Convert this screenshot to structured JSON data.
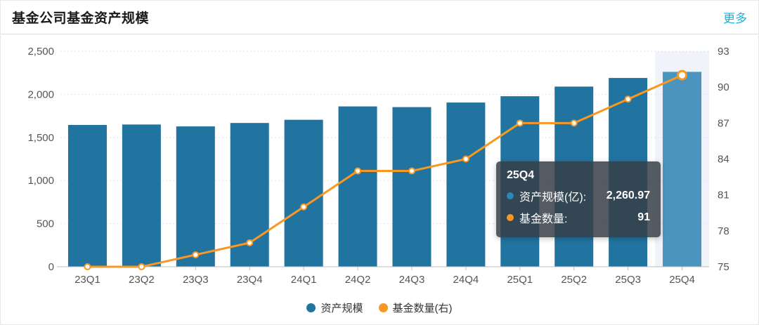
{
  "header": {
    "title": "基金公司基金资产规模",
    "more": "更多"
  },
  "chart_data": {
    "type": "bar+line",
    "categories": [
      "23Q1",
      "23Q2",
      "23Q3",
      "23Q4",
      "24Q1",
      "24Q2",
      "24Q3",
      "24Q4",
      "25Q1",
      "25Q2",
      "25Q3",
      "25Q4"
    ],
    "series": [
      {
        "name": "资产规模",
        "type": "bar",
        "axis": "left",
        "color": "#2274A0",
        "highlight_color": "#4A94BE",
        "values": [
          1645,
          1650,
          1628,
          1668,
          1705,
          1860,
          1852,
          1905,
          1978,
          2090,
          2190,
          2260.97
        ]
      },
      {
        "name": "基金数量(右)",
        "type": "line",
        "axis": "right",
        "color": "#FA9723",
        "values": [
          75,
          75,
          76,
          77,
          80,
          83,
          83,
          84,
          87,
          87,
          89,
          91
        ]
      }
    ],
    "left_axis": {
      "min": 0,
      "max": 2500,
      "ticks": [
        {
          "v": 0,
          "label": "0"
        },
        {
          "v": 500,
          "label": "500"
        },
        {
          "v": 1000,
          "label": "1,000"
        },
        {
          "v": 1500,
          "label": "1,500"
        },
        {
          "v": 2000,
          "label": "2,000"
        },
        {
          "v": 2500,
          "label": "2,500"
        }
      ]
    },
    "right_axis": {
      "min": 75,
      "max": 93,
      "ticks": [
        {
          "v": 75,
          "label": "75"
        },
        {
          "v": 78,
          "label": "78"
        },
        {
          "v": 81,
          "label": "81"
        },
        {
          "v": 84,
          "label": "84"
        },
        {
          "v": 87,
          "label": "87"
        },
        {
          "v": 90,
          "label": "90"
        },
        {
          "v": 93,
          "label": "93"
        }
      ]
    },
    "highlight_index": 11,
    "highlight_band_color": "#F1F3FA",
    "grid_color": "#DEE4EF",
    "axis_line_color": "#BDBDBD",
    "label_color": "#555555",
    "legend_position": "bottom",
    "grid": true
  },
  "tooltip": {
    "title": "25Q4",
    "rows": [
      {
        "label": "资产规模(亿):",
        "value": "2,260.97",
        "color": "#2E86B5"
      },
      {
        "label": "基金数量:",
        "value": "91",
        "color": "#FA9723"
      }
    ]
  },
  "legend": {
    "items": [
      {
        "label": "资产规模",
        "color": "#2274A0"
      },
      {
        "label": "基金数量(右)",
        "color": "#FA9723"
      }
    ]
  }
}
